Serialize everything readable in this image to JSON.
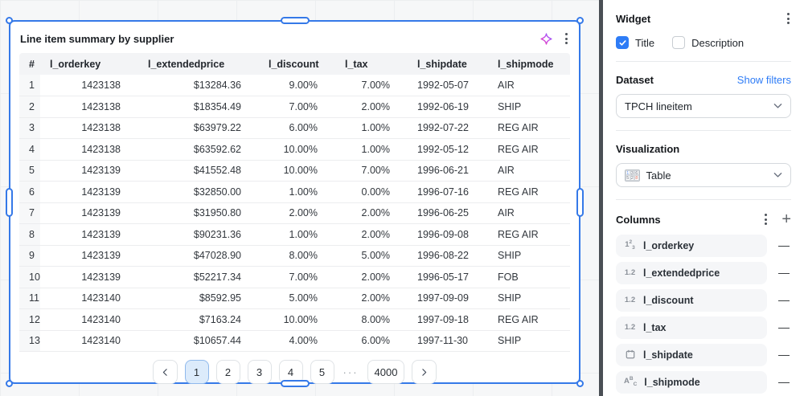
{
  "widget": {
    "title": "Line item summary by supplier",
    "table": {
      "row_number_header": "#",
      "columns": [
        {
          "label": "l_orderkey",
          "align": "right"
        },
        {
          "label": "l_extendedprice",
          "align": "right"
        },
        {
          "label": "l_discount",
          "align": "right"
        },
        {
          "label": "l_tax",
          "align": "right"
        },
        {
          "label": "l_shipdate",
          "align": "left"
        },
        {
          "label": "l_shipmode",
          "align": "left"
        }
      ],
      "rows": [
        [
          "1",
          "1423138",
          "$13284.36",
          "9.00%",
          "7.00%",
          "1992-05-07",
          "AIR"
        ],
        [
          "2",
          "1423138",
          "$18354.49",
          "7.00%",
          "2.00%",
          "1992-06-19",
          "SHIP"
        ],
        [
          "3",
          "1423138",
          "$63979.22",
          "6.00%",
          "1.00%",
          "1992-07-22",
          "REG AIR"
        ],
        [
          "4",
          "1423138",
          "$63592.62",
          "10.00%",
          "1.00%",
          "1992-05-12",
          "REG AIR"
        ],
        [
          "5",
          "1423139",
          "$41552.48",
          "10.00%",
          "7.00%",
          "1996-06-21",
          "AIR"
        ],
        [
          "6",
          "1423139",
          "$32850.00",
          "1.00%",
          "0.00%",
          "1996-07-16",
          "REG AIR"
        ],
        [
          "7",
          "1423139",
          "$31950.80",
          "2.00%",
          "2.00%",
          "1996-06-25",
          "AIR"
        ],
        [
          "8",
          "1423139",
          "$90231.36",
          "1.00%",
          "2.00%",
          "1996-09-08",
          "REG AIR"
        ],
        [
          "9",
          "1423139",
          "$47028.90",
          "8.00%",
          "5.00%",
          "1996-08-22",
          "SHIP"
        ],
        [
          "10",
          "1423139",
          "$52217.34",
          "7.00%",
          "2.00%",
          "1996-05-17",
          "FOB"
        ],
        [
          "11",
          "1423140",
          "$8592.95",
          "5.00%",
          "2.00%",
          "1997-09-09",
          "SHIP"
        ],
        [
          "12",
          "1423140",
          "$7163.24",
          "10.00%",
          "8.00%",
          "1997-09-18",
          "REG AIR"
        ],
        [
          "13",
          "1423140",
          "$10657.44",
          "4.00%",
          "6.00%",
          "1997-11-30",
          "SHIP"
        ]
      ]
    },
    "pagination": {
      "prev_icon": "chevron-left-icon",
      "next_icon": "chevron-right-icon",
      "pages": [
        "1",
        "2",
        "3",
        "4",
        "5"
      ],
      "active_page": "1",
      "ellipsis": "···",
      "last_page": "4000"
    },
    "header_icons": [
      "sparkle-ai-icon",
      "kebab-menu-icon"
    ]
  },
  "panel": {
    "widget_section": {
      "heading": "Widget",
      "title_label": "Title",
      "title_checked": true,
      "description_label": "Description",
      "description_checked": false
    },
    "dataset_section": {
      "heading": "Dataset",
      "show_filters_label": "Show filters",
      "selected": "TPCH lineitem"
    },
    "visualization_section": {
      "heading": "Visualization",
      "selected": "Table",
      "icon": "table-viz-icon"
    },
    "columns_section": {
      "heading": "Columns",
      "items": [
        {
          "type": "integer",
          "label": "l_orderkey"
        },
        {
          "type": "decimal",
          "label": "l_extendedprice"
        },
        {
          "type": "decimal",
          "label": "l_discount"
        },
        {
          "type": "decimal",
          "label": "l_tax"
        },
        {
          "type": "date",
          "label": "l_shipdate"
        },
        {
          "type": "text",
          "label": "l_shipmode"
        }
      ]
    }
  },
  "colors": {
    "accent_blue": "#3579e8",
    "link_blue": "#2e7cf6",
    "active_page_bg": "#dcebfb",
    "panel_divider": "#4a4f55"
  }
}
